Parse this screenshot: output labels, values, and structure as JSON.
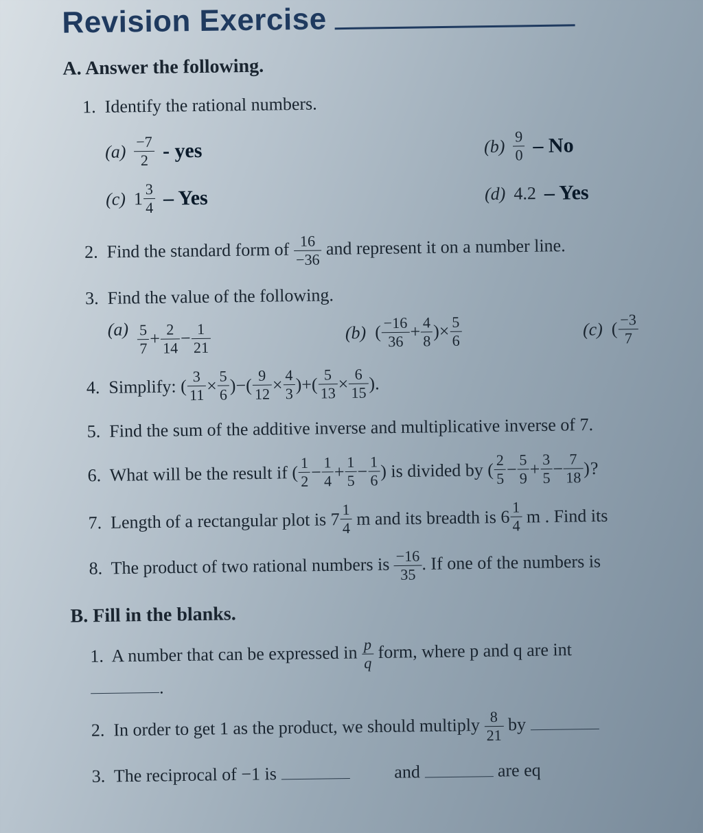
{
  "heading": "Revision Exercise",
  "secA": {
    "title": "A. Answer the following.",
    "q1": {
      "text": "Identify the rational numbers.",
      "a": {
        "label": "(a)",
        "num": "−7",
        "den": "2",
        "hand": "- yes"
      },
      "b": {
        "label": "(b)",
        "num": "9",
        "den": "0",
        "hand": "– No"
      },
      "c": {
        "label": "(c)",
        "whole": "1",
        "num": "3",
        "den": "4",
        "hand": "– Yes"
      },
      "d": {
        "label": "(d)",
        "val": "4.2",
        "hand": "– Yes"
      }
    },
    "q2": {
      "pre": "Find the standard form of",
      "num": "16",
      "den": "−36",
      "post": "and represent it on a number line."
    },
    "q3": {
      "text": "Find the value of the following.",
      "a": {
        "label": "(a)",
        "f1n": "5",
        "f1d": "7",
        "f2n": "2",
        "f2d": "14",
        "f3n": "1",
        "f3d": "21"
      },
      "b": {
        "label": "(b)",
        "f1n": "−16",
        "f1d": "36",
        "f2n": "4",
        "f2d": "8",
        "f3n": "5",
        "f3d": "6"
      },
      "c": {
        "label": "(c)",
        "f1n": "−3",
        "f1d": "7"
      }
    },
    "q4": {
      "pre": "Simplify:",
      "f1n": "3",
      "f1d": "11",
      "f2n": "5",
      "f2d": "6",
      "f3n": "9",
      "f3d": "12",
      "f4n": "4",
      "f4d": "3",
      "f5n": "5",
      "f5d": "13",
      "f6n": "6",
      "f6d": "15"
    },
    "q5": "Find the sum of the additive inverse and multiplicative inverse of 7.",
    "q6": {
      "pre": "What will be the result if",
      "f1n": "1",
      "f1d": "2",
      "f2n": "1",
      "f2d": "4",
      "f3n": "1",
      "f3d": "5",
      "f4n": "1",
      "f4d": "6",
      "mid": "is divided by",
      "g1n": "2",
      "g1d": "5",
      "g2n": "5",
      "g2d": "9",
      "g3n": "3",
      "g3d": "5",
      "g4n": "7",
      "g4d": "18",
      "post": "?"
    },
    "q7": {
      "pre": "Length of a rectangular plot is",
      "w1": "7",
      "n1": "1",
      "d1": "4",
      "mid": "m and its breadth is",
      "w2": "6",
      "n2": "1",
      "d2": "4",
      "post": "m . Find its"
    },
    "q8": {
      "pre": "The product of two rational numbers is",
      "num": "−16",
      "den": "35",
      "post": ". If one of the numbers is"
    }
  },
  "secB": {
    "title": "B. Fill in the blanks.",
    "q1": {
      "pre": "A number that can be expressed in",
      "num": "p",
      "den": "q",
      "post": "form, where p and q are int"
    },
    "q2": {
      "pre": "In order to get 1 as the product, we should multiply",
      "num": "8",
      "den": "21",
      "post": "by"
    },
    "q3": {
      "pre": "The reciprocal of −1 is",
      "mid": "and",
      "post": "are eq"
    }
  }
}
